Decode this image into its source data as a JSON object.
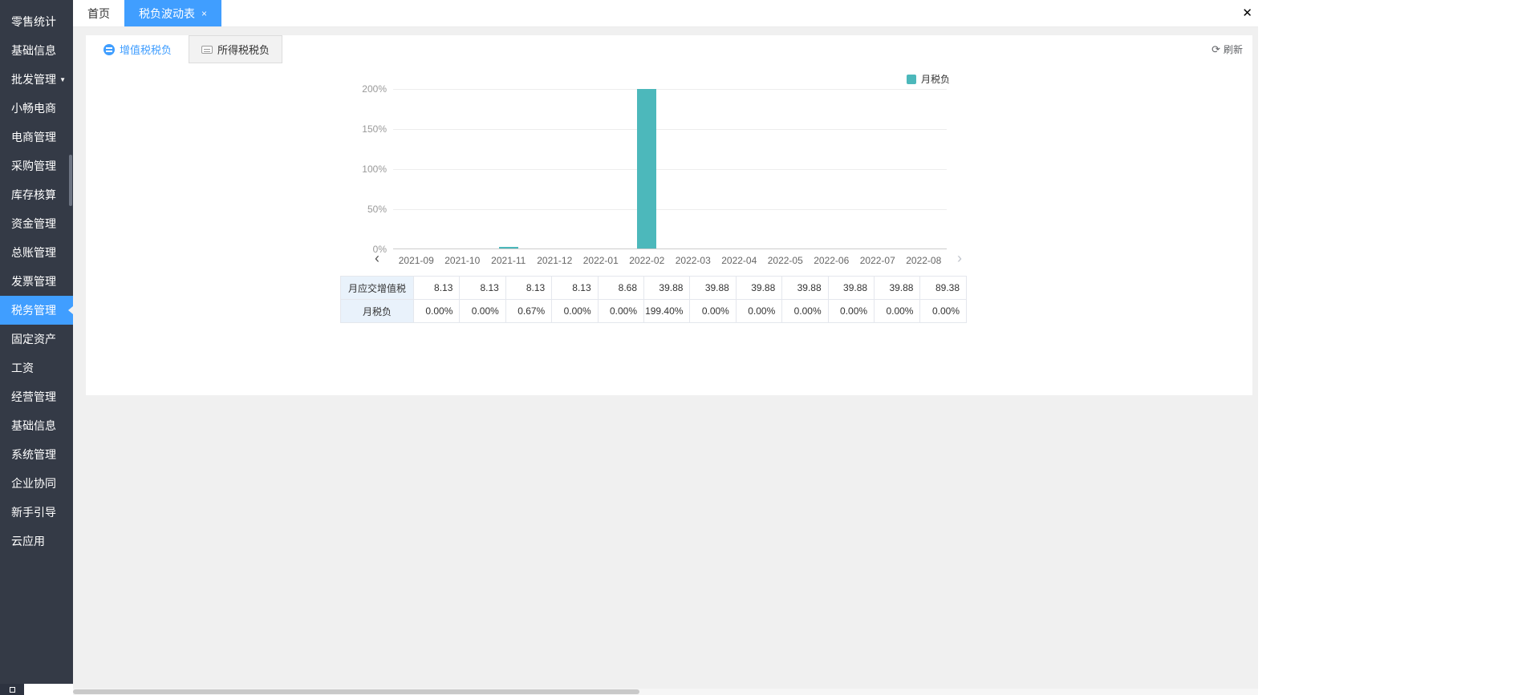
{
  "sidebar": {
    "caret_icon": "▼",
    "items": [
      {
        "label": "零售统计"
      },
      {
        "label": "基础信息"
      },
      {
        "label": "批发管理",
        "has_dropdown": true
      },
      {
        "label": "小畅电商"
      },
      {
        "label": "电商管理"
      },
      {
        "label": "采购管理"
      },
      {
        "label": "库存核算"
      },
      {
        "label": "资金管理"
      },
      {
        "label": "总账管理"
      },
      {
        "label": "发票管理"
      },
      {
        "label": "税务管理",
        "active": true
      },
      {
        "label": "固定资产"
      },
      {
        "label": "工资"
      },
      {
        "label": "经营管理"
      },
      {
        "label": "基础信息"
      },
      {
        "label": "系统管理"
      },
      {
        "label": "企业协同"
      },
      {
        "label": "新手引导"
      },
      {
        "label": "云应用"
      }
    ]
  },
  "tabbar": {
    "tabs": [
      {
        "label": "首页",
        "active": false,
        "closable": false
      },
      {
        "label": "税负波动表",
        "active": true,
        "closable": true
      }
    ],
    "tab_close_icon": "×",
    "close_all_icon": "✕"
  },
  "panel": {
    "tabs": [
      {
        "label": "增值税税负",
        "active": true,
        "icon": "coin-lines-icon"
      },
      {
        "label": "所得税税负",
        "active": false,
        "icon": "card-lines-icon"
      }
    ],
    "refresh_label": "刷新",
    "refresh_icon": "⟳"
  },
  "chart_data": {
    "type": "bar",
    "title": "",
    "categories": [
      "2021-09",
      "2021-10",
      "2021-11",
      "2021-12",
      "2022-01",
      "2022-02",
      "2022-03",
      "2022-04",
      "2022-05",
      "2022-06",
      "2022-07",
      "2022-08"
    ],
    "series": [
      {
        "name": "月税负",
        "values": [
          0.0,
          0.0,
          0.67,
          0.0,
          0.0,
          199.4,
          0.0,
          0.0,
          0.0,
          0.0,
          0.0,
          0.0
        ]
      }
    ],
    "unit": "%",
    "ylim": [
      0,
      200
    ],
    "yticks": [
      {
        "value": 0,
        "label": "0%"
      },
      {
        "value": 50,
        "label": "50%"
      },
      {
        "value": 100,
        "label": "100%"
      },
      {
        "value": 150,
        "label": "150%"
      },
      {
        "value": 200,
        "label": "200%"
      }
    ],
    "grid": true,
    "legend_position": "top-right",
    "bar_color": "#4cb8bb",
    "pager": {
      "prev": "‹",
      "next": "›"
    }
  },
  "table": {
    "rows": [
      {
        "header": "月应交增值税",
        "values": [
          "8.13",
          "8.13",
          "8.13",
          "8.13",
          "8.68",
          "39.88",
          "39.88",
          "39.88",
          "39.88",
          "39.88",
          "39.88",
          "89.38"
        ]
      },
      {
        "header": "月税负",
        "values": [
          "0.00%",
          "0.00%",
          "0.67%",
          "0.00%",
          "0.00%",
          "199.40%",
          "0.00%",
          "0.00%",
          "0.00%",
          "0.00%",
          "0.00%",
          "0.00%"
        ]
      }
    ]
  },
  "colors": {
    "accent_blue": "#409eff",
    "bar_teal": "#4cb8bb",
    "sidebar_bg": "#343a46",
    "content_bg": "#f0f0f0",
    "table_header_bg": "#e9f2fb"
  }
}
